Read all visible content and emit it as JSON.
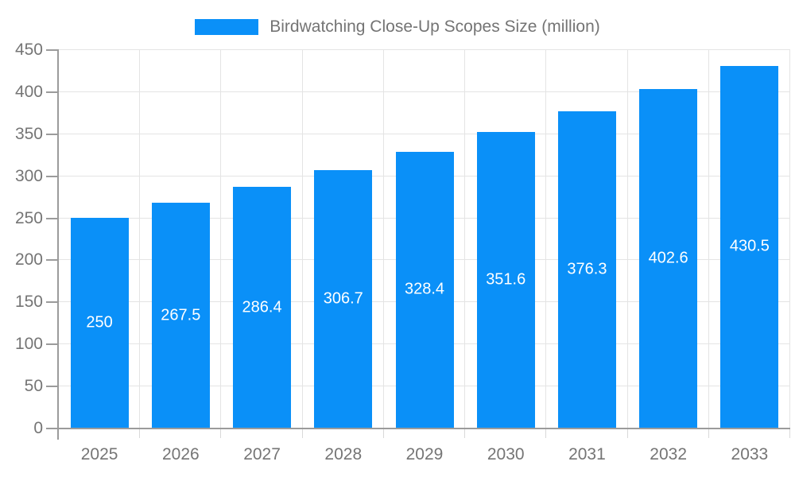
{
  "legend": {
    "label": "Birdwatching Close-Up Scopes Size (million)",
    "swatch_icon": "legend-swatch"
  },
  "colors": {
    "bar": "#0A90F8",
    "axis": "#9b9b9b",
    "grid": "#e4e4e4",
    "minor_tick": "#d9d9d9",
    "tick_text": "#757575",
    "legend_text": "#747474",
    "bar_label_text": "#ffffff",
    "background": "#ffffff"
  },
  "chart_data": {
    "type": "bar",
    "title": "Birdwatching Close-Up Scopes Size (million)",
    "categories": [
      "2025",
      "2026",
      "2027",
      "2028",
      "2029",
      "2030",
      "2031",
      "2032",
      "2033"
    ],
    "values": [
      250,
      267.5,
      286.4,
      306.7,
      328.4,
      351.6,
      376.3,
      402.6,
      430.5
    ],
    "series": [
      {
        "name": "Birdwatching Close-Up Scopes Size (million)",
        "values": [
          250,
          267.5,
          286.4,
          306.7,
          328.4,
          351.6,
          376.3,
          402.6,
          430.5
        ]
      }
    ],
    "xlabel": "",
    "ylabel": "",
    "ylim": [
      0,
      450
    ],
    "yticks": [
      0,
      50,
      100,
      150,
      200,
      250,
      300,
      350,
      400,
      450
    ],
    "grid": true,
    "legend_position": "top",
    "value_labels_shown": true,
    "value_label_position": "inside-center"
  }
}
